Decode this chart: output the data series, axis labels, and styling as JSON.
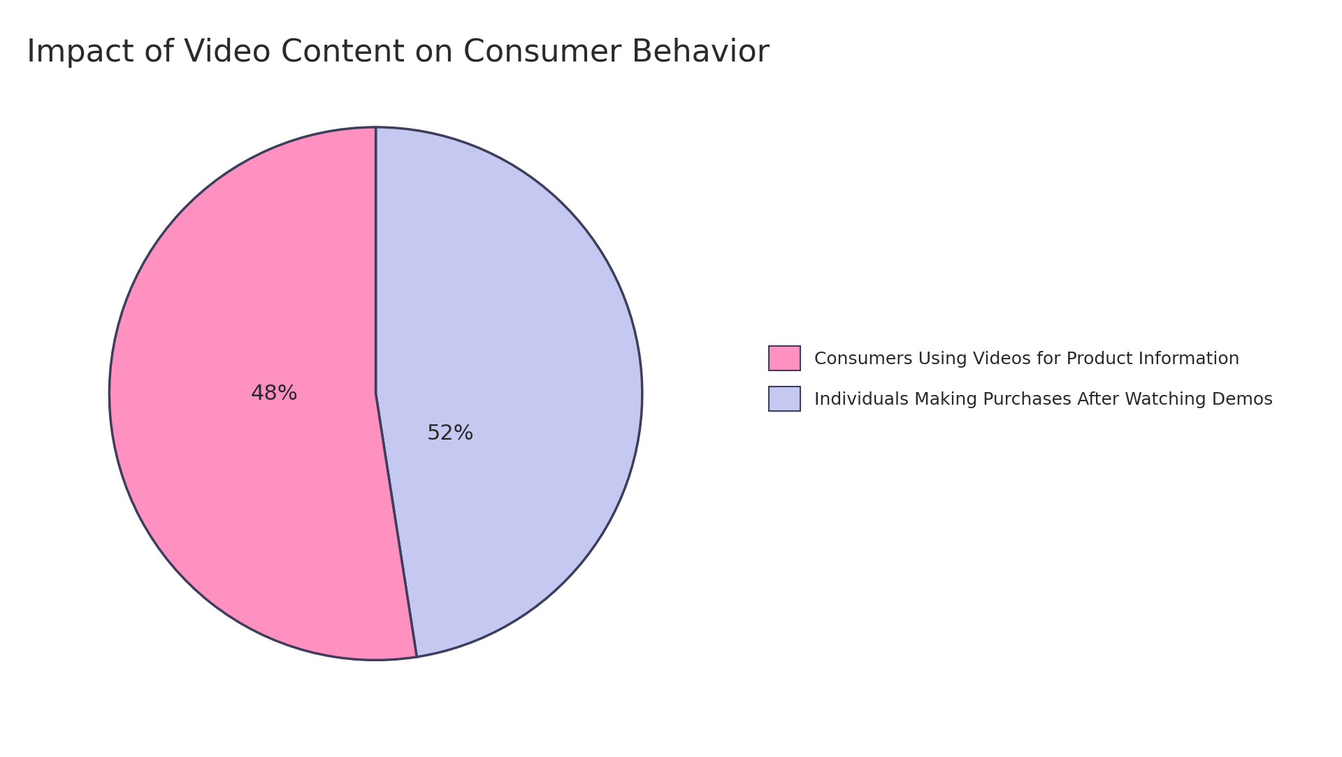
{
  "title": "Impact of Video Content on Consumer Behavior",
  "slices": [
    87,
    96
  ],
  "display_percentages": [
    "48%",
    "52%"
  ],
  "labels": [
    "Consumers Using Videos for Product Information",
    "Individuals Making Purchases After Watching Demos"
  ],
  "colors": [
    "#C5C8F0",
    "#FF91C1"
  ],
  "edge_color": "#3d3d5c",
  "edge_width": 2.5,
  "background_color": "#ffffff",
  "title_fontsize": 32,
  "title_color": "#2a2a2a",
  "pct_fontsize": 22,
  "pct_color": "#2a2a2a",
  "legend_fontsize": 18,
  "startangle": 90
}
